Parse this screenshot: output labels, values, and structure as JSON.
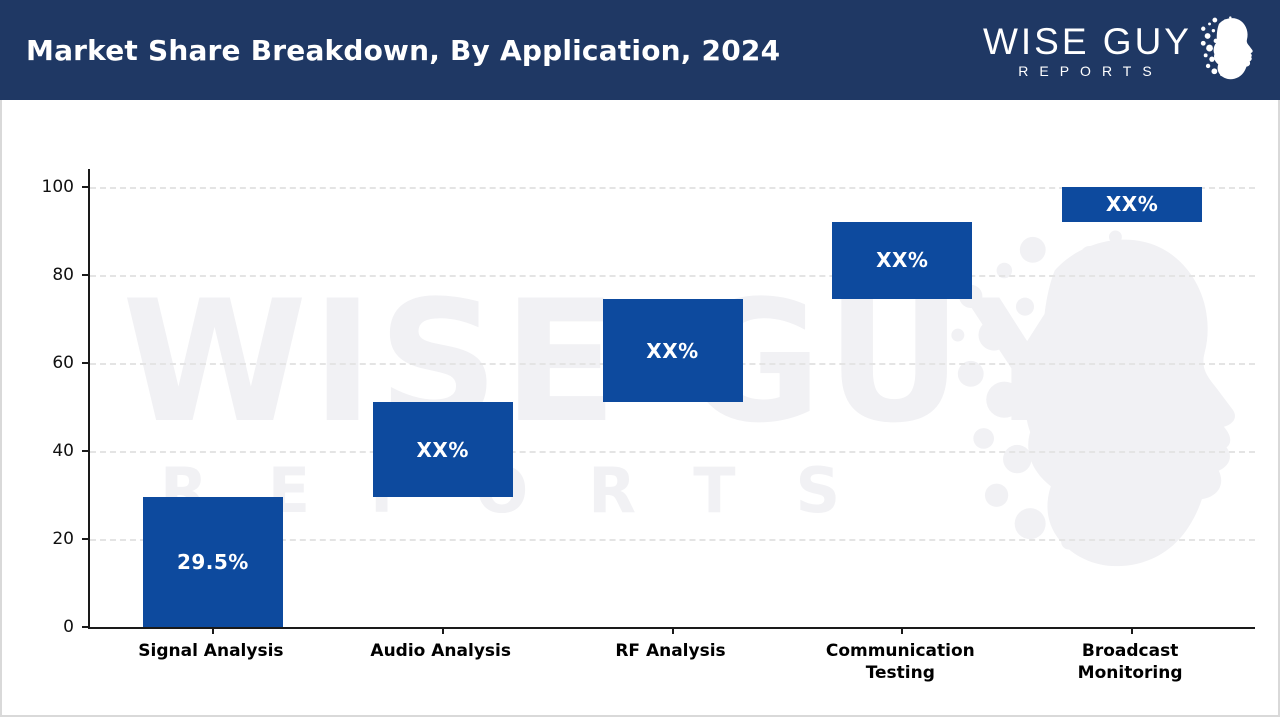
{
  "header": {
    "title": "Market Share Breakdown, By Application, 2024",
    "bg_color": "#1f3864",
    "logo": {
      "line1": "WISE GUY",
      "line2": "REPORTS"
    }
  },
  "watermark": {
    "line1": "WISE GUY",
    "line2": "REPORTS"
  },
  "chart_data": {
    "type": "bar",
    "subtype": "floating-cumulative-segments",
    "title": "Market Share Breakdown, By Application, 2024",
    "unit": "%",
    "categories": [
      "Signal Analysis",
      "Audio Analysis",
      "RF Analysis",
      "Communication Testing",
      "Broadcast Monitoring"
    ],
    "bars": [
      {
        "category": "Signal Analysis",
        "start": 0,
        "end": 29.5,
        "label": "29.5%"
      },
      {
        "category": "Audio Analysis",
        "start": 29.5,
        "end": 51,
        "label": "XX%"
      },
      {
        "category": "RF Analysis",
        "start": 51,
        "end": 74.5,
        "label": "XX%"
      },
      {
        "category": "Communication Testing",
        "start": 74.5,
        "end": 92,
        "label": "XX%"
      },
      {
        "category": "Broadcast Monitoring",
        "start": 92,
        "end": 100,
        "label": "XX%"
      }
    ],
    "yticks": [
      0,
      20,
      40,
      60,
      80,
      100
    ],
    "ylim": [
      0,
      104
    ],
    "grid": "horizontal-dashed",
    "legend": "none",
    "bar_color": "#0d4a9e",
    "axis_color": "#1a1a1a",
    "gridline_color": "#e4e4e4"
  }
}
